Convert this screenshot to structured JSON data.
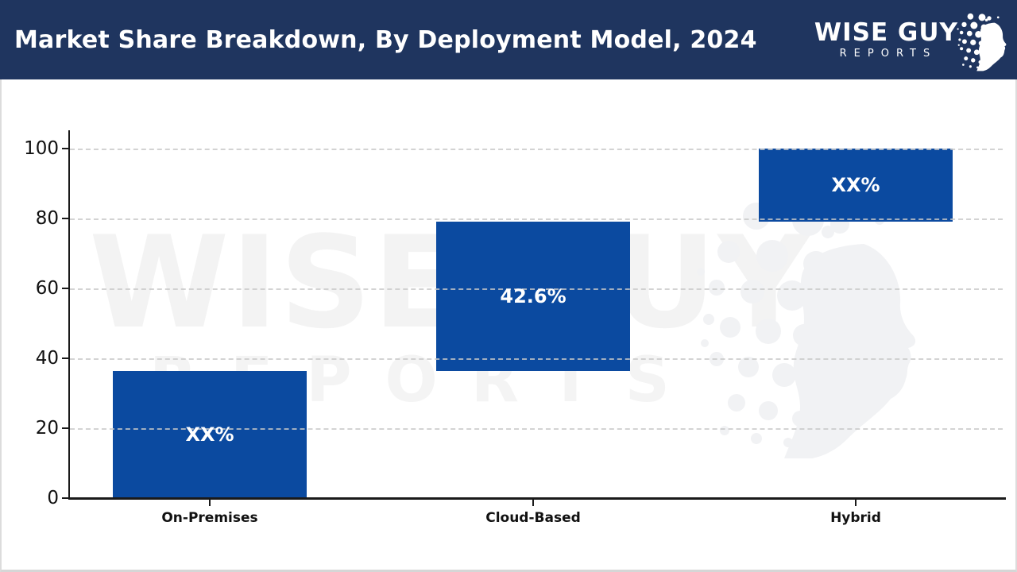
{
  "header": {
    "title": "Market Share Breakdown, By Deployment Model, 2024",
    "logo": {
      "name_line": "WISE GUY",
      "sub_line": "REPORTS"
    }
  },
  "watermark": {
    "big_text": "WISE GUY",
    "sub_text": "REPORTS"
  },
  "chart_data": {
    "type": "bar",
    "subtype": "floating-waterfall-segments",
    "title": "Market Share Breakdown, By Deployment Model, 2024",
    "categories": [
      "On-Premises",
      "Cloud-Based",
      "Hybrid"
    ],
    "bars": [
      {
        "category": "On-Premises",
        "start": 0,
        "end": 36.4,
        "value_label": "XX%"
      },
      {
        "category": "Cloud-Based",
        "start": 36.4,
        "end": 79.0,
        "value_label": "42.6%"
      },
      {
        "category": "Hybrid",
        "start": 79.0,
        "end": 100,
        "value_label": "XX%"
      }
    ],
    "segment_sizes_estimated": [
      36.4,
      42.6,
      21.0
    ],
    "unit": "%",
    "xlabel": "",
    "ylabel": "",
    "ylim": [
      0,
      100
    ],
    "yticks": [
      0,
      20,
      40,
      60,
      80,
      100
    ],
    "grid": "horizontal-dashed",
    "legend": "none",
    "bar_color": "#0b4aa0",
    "value_label_color": "#ffffff",
    "axis_color": "#1a1a1a",
    "header_color": "#1f355f"
  }
}
